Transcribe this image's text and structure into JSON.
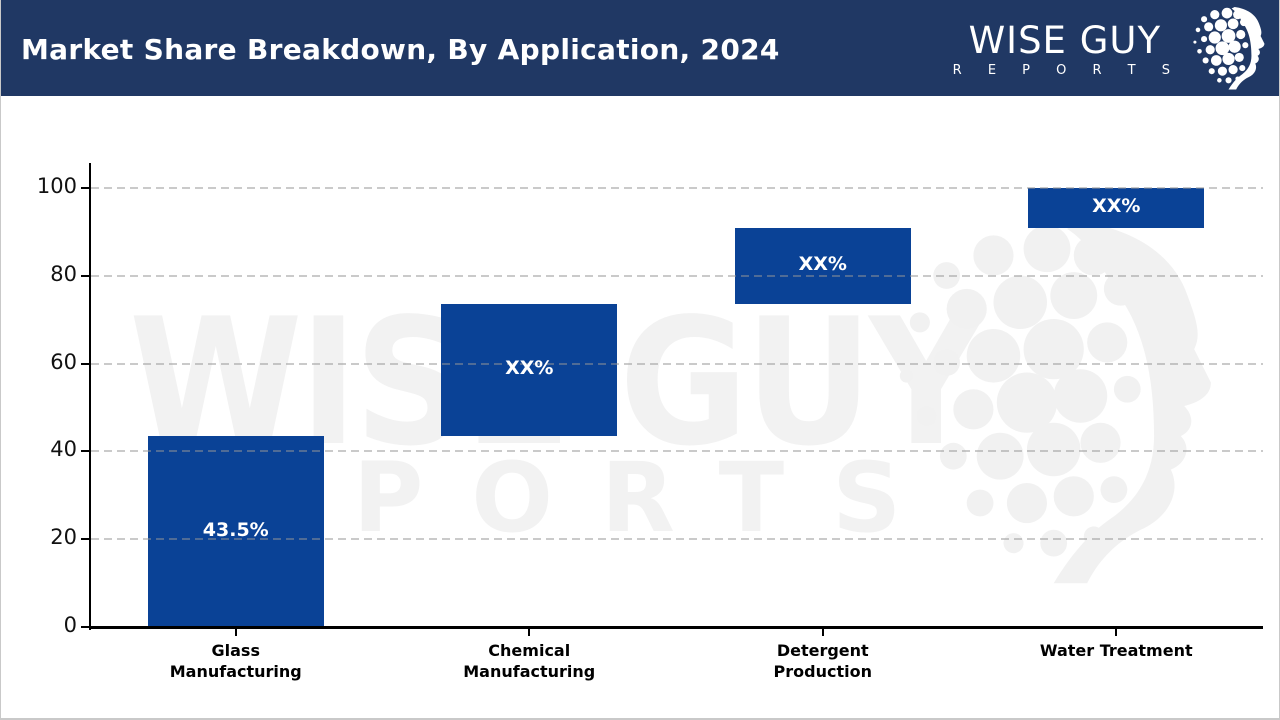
{
  "header": {
    "title": "Market Share Breakdown, By Application, 2024",
    "logo": {
      "line1": "WISE GUY",
      "line2": "R E P O R T S",
      "face_icon": "dotted-head-profile"
    }
  },
  "watermark": {
    "line1": "WISE GUY",
    "line2": "PORTS"
  },
  "chart_data": {
    "type": "bar",
    "variant": "waterfall-floating-bars",
    "title": "Market Share Breakdown, By Application, 2024",
    "categories": [
      "Glass Manufacturing",
      "Chemical Manufacturing",
      "Detergent Production",
      "Water Treatment"
    ],
    "category_label_lines": [
      [
        "Glass",
        "Manufacturing"
      ],
      [
        "Chemical",
        "Manufacturing"
      ],
      [
        "Detergent",
        "Production"
      ],
      [
        "Water Treatment"
      ]
    ],
    "segments": [
      {
        "category": "Glass Manufacturing",
        "start": 0,
        "end": 43.5,
        "label": "43.5%"
      },
      {
        "category": "Chemical Manufacturing",
        "start": 43.5,
        "end": 73.5,
        "label": "XX%"
      },
      {
        "category": "Detergent Production",
        "start": 73.5,
        "end": 91,
        "label": "XX%"
      },
      {
        "category": "Water Treatment",
        "start": 91,
        "end": 100,
        "label": "XX%"
      }
    ],
    "xlabel": "",
    "ylabel": "",
    "ylim": [
      0,
      100
    ],
    "yticks": [
      0,
      20,
      40,
      60,
      80,
      100
    ],
    "grid": "horizontal-dashed",
    "legend": "none",
    "bar_color": "#0a4296",
    "value_label_color": "#ffffff"
  },
  "colors": {
    "header_bg": "#203864",
    "bar": "#0a4296",
    "page_bg": "#ffffff",
    "grid": "#c8c8c8",
    "axis": "#000000",
    "watermark": "#f2f2f2"
  }
}
